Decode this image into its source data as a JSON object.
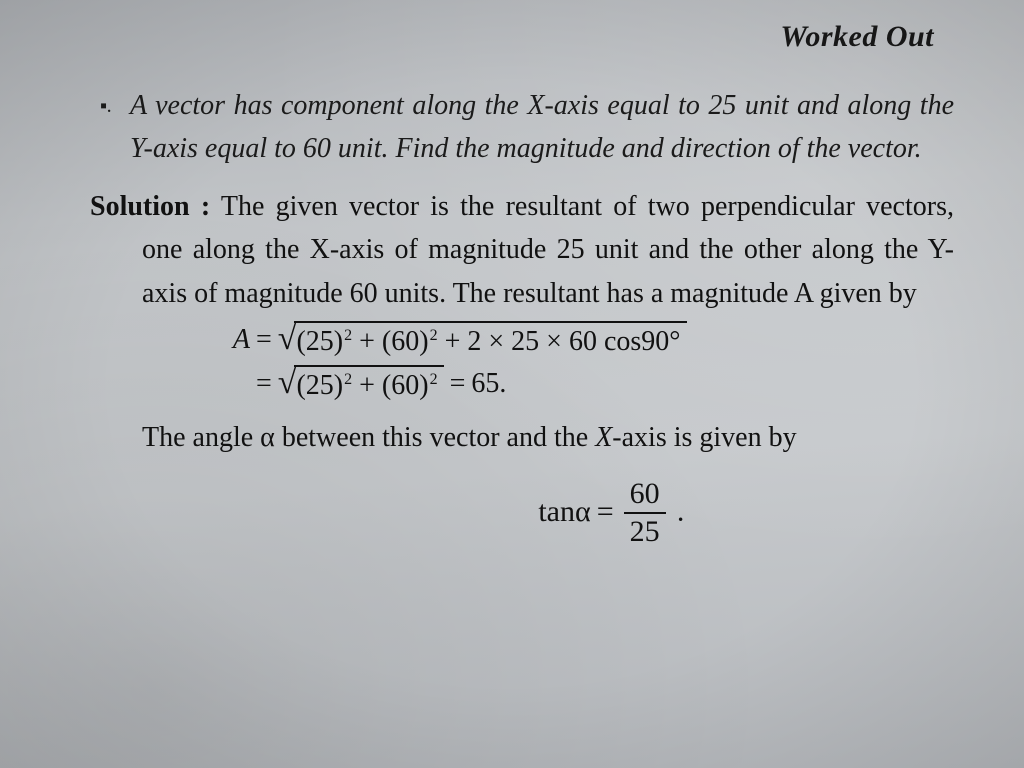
{
  "header": {
    "title": "Worked Out"
  },
  "problem": {
    "bullet": "▪.",
    "text": "A vector has component along the X-axis equal to 25 unit and along the Y-axis equal to 60 unit. Find the magnitude and direction of the vector."
  },
  "solution": {
    "lead": "Solution :",
    "intro": "The given vector is the resultant of two perpendicular vectors, one along the X-axis of magnitude 25 unit and the other along the Y-axis of magnitude 60 units. The resultant has a magnitude A given by",
    "eq1": {
      "lhs": "A",
      "a": "25",
      "b": "60",
      "cross_a": "25",
      "cross_b": "60",
      "angle": "90°"
    },
    "eq2": {
      "a": "25",
      "b": "60",
      "result": "65"
    },
    "angle_text_pre": "The angle ",
    "angle_var": "α",
    "angle_text_mid": " between this vector and the ",
    "angle_axis": "X",
    "angle_text_post": "-axis is given by",
    "tan": {
      "fn": "tan",
      "var": "α",
      "num": "60",
      "den": "25"
    }
  },
  "style": {
    "text_color": "#1a1a1a",
    "page_bg_from": "#b0b3b7",
    "page_bg_to": "#b6b9bd",
    "font_body_pt": 28,
    "font_header_pt": 30
  }
}
